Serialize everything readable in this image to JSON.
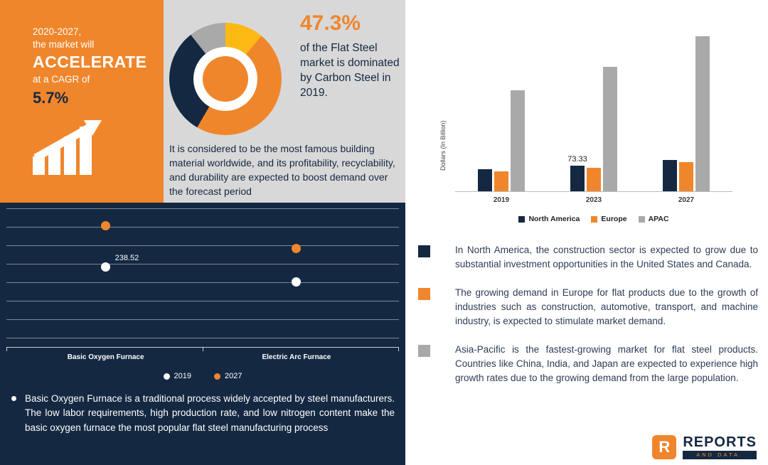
{
  "cagr_panel": {
    "period": "2020-2027,",
    "prefix": "the market will",
    "accelerate": "ACCELERATE",
    "cagr_label": "at a CAGR of",
    "cagr_value": "5.7%"
  },
  "carbon_panel": {
    "stat": "47.3%",
    "stat_desc": "of the Flat Steel market is dominated by Carbon Steel in 2019.",
    "paragraph": "It is considered to be the most famous building material worldwide, and its profitability, recyclability, and durability are expected to boost demand over the forecast period"
  },
  "furnace_panel": {
    "bullet": "Basic Oxygen Furnace is a traditional process widely accepted by steel manufacturers. The low labor requirements, high production rate, and low nitrogen content make the basic oxygen furnace the most popular flat steel manufacturing process"
  },
  "regional_bullets": [
    {
      "color": "#142841",
      "text": "In North America, the construction sector is expected to grow due to substantial investment opportunities in the United States and Canada."
    },
    {
      "color": "#F0862C",
      "text": "The growing demand in Europe for flat products due to the growth of industries such as construction, automotive, transport, and machine industry, is expected to stimulate market demand."
    },
    {
      "color": "#A9A9A9",
      "text": "Asia-Pacific is the fastest-growing market for flat steel products. Countries like China, India, and Japan are expected to experience high growth rates due to the growing demand from the large population."
    }
  ],
  "logo": {
    "brand": "REPORTS",
    "sub": "AND DATA."
  },
  "colors": {
    "orange": "#F0862C",
    "navy": "#142841",
    "gray": "#A9A9A9",
    "light_gray": "#D8D8D8",
    "yellow": "#FDB913"
  },
  "chart_data": [
    {
      "type": "pie",
      "style": "donut",
      "slices": [
        {
          "label": "",
          "value": 11.1,
          "color": "#FDB913"
        },
        {
          "label": "Carbon Steel",
          "value": 47.3,
          "color": "#F0862C"
        },
        {
          "label": "",
          "value": 31.0,
          "color": "#142841"
        },
        {
          "label": "",
          "value": 10.6,
          "color": "#A9A9A9"
        }
      ],
      "annotation": "47.3% of the Flat Steel market is dominated by Carbon Steel in 2019."
    },
    {
      "type": "bar",
      "categories": [
        "2019",
        "2023",
        "2027"
      ],
      "series": [
        {
          "name": "North America",
          "color": "#142841",
          "values": [
            63,
            73.33,
            90
          ]
        },
        {
          "name": "Europe",
          "color": "#F0862C",
          "values": [
            57,
            67,
            84
          ]
        },
        {
          "name": "APAC",
          "color": "#A9A9A9",
          "values": [
            293,
            360,
            450
          ]
        }
      ],
      "ylabel": "Dollars (In Billion)",
      "ylim": [
        0,
        480
      ],
      "data_labels": [
        {
          "category": "2023",
          "series": "North America",
          "text": "73.33"
        }
      ],
      "legend_position": "bottom",
      "grid": false
    },
    {
      "type": "scatter",
      "categories": [
        "Basic Oxygen Furnace",
        "Electric Arc Furnace"
      ],
      "series": [
        {
          "name": "2019",
          "color": "#FFFFFF",
          "values": [
            238.52,
            213
          ]
        },
        {
          "name": "2027",
          "color": "#F0862C",
          "values": [
            310,
            270
          ]
        }
      ],
      "ylim": [
        100,
        340
      ],
      "data_labels": [
        {
          "category": "Basic Oxygen Furnace",
          "series": "2019",
          "text": "238.52"
        }
      ],
      "legend_position": "bottom",
      "grid": true
    }
  ]
}
